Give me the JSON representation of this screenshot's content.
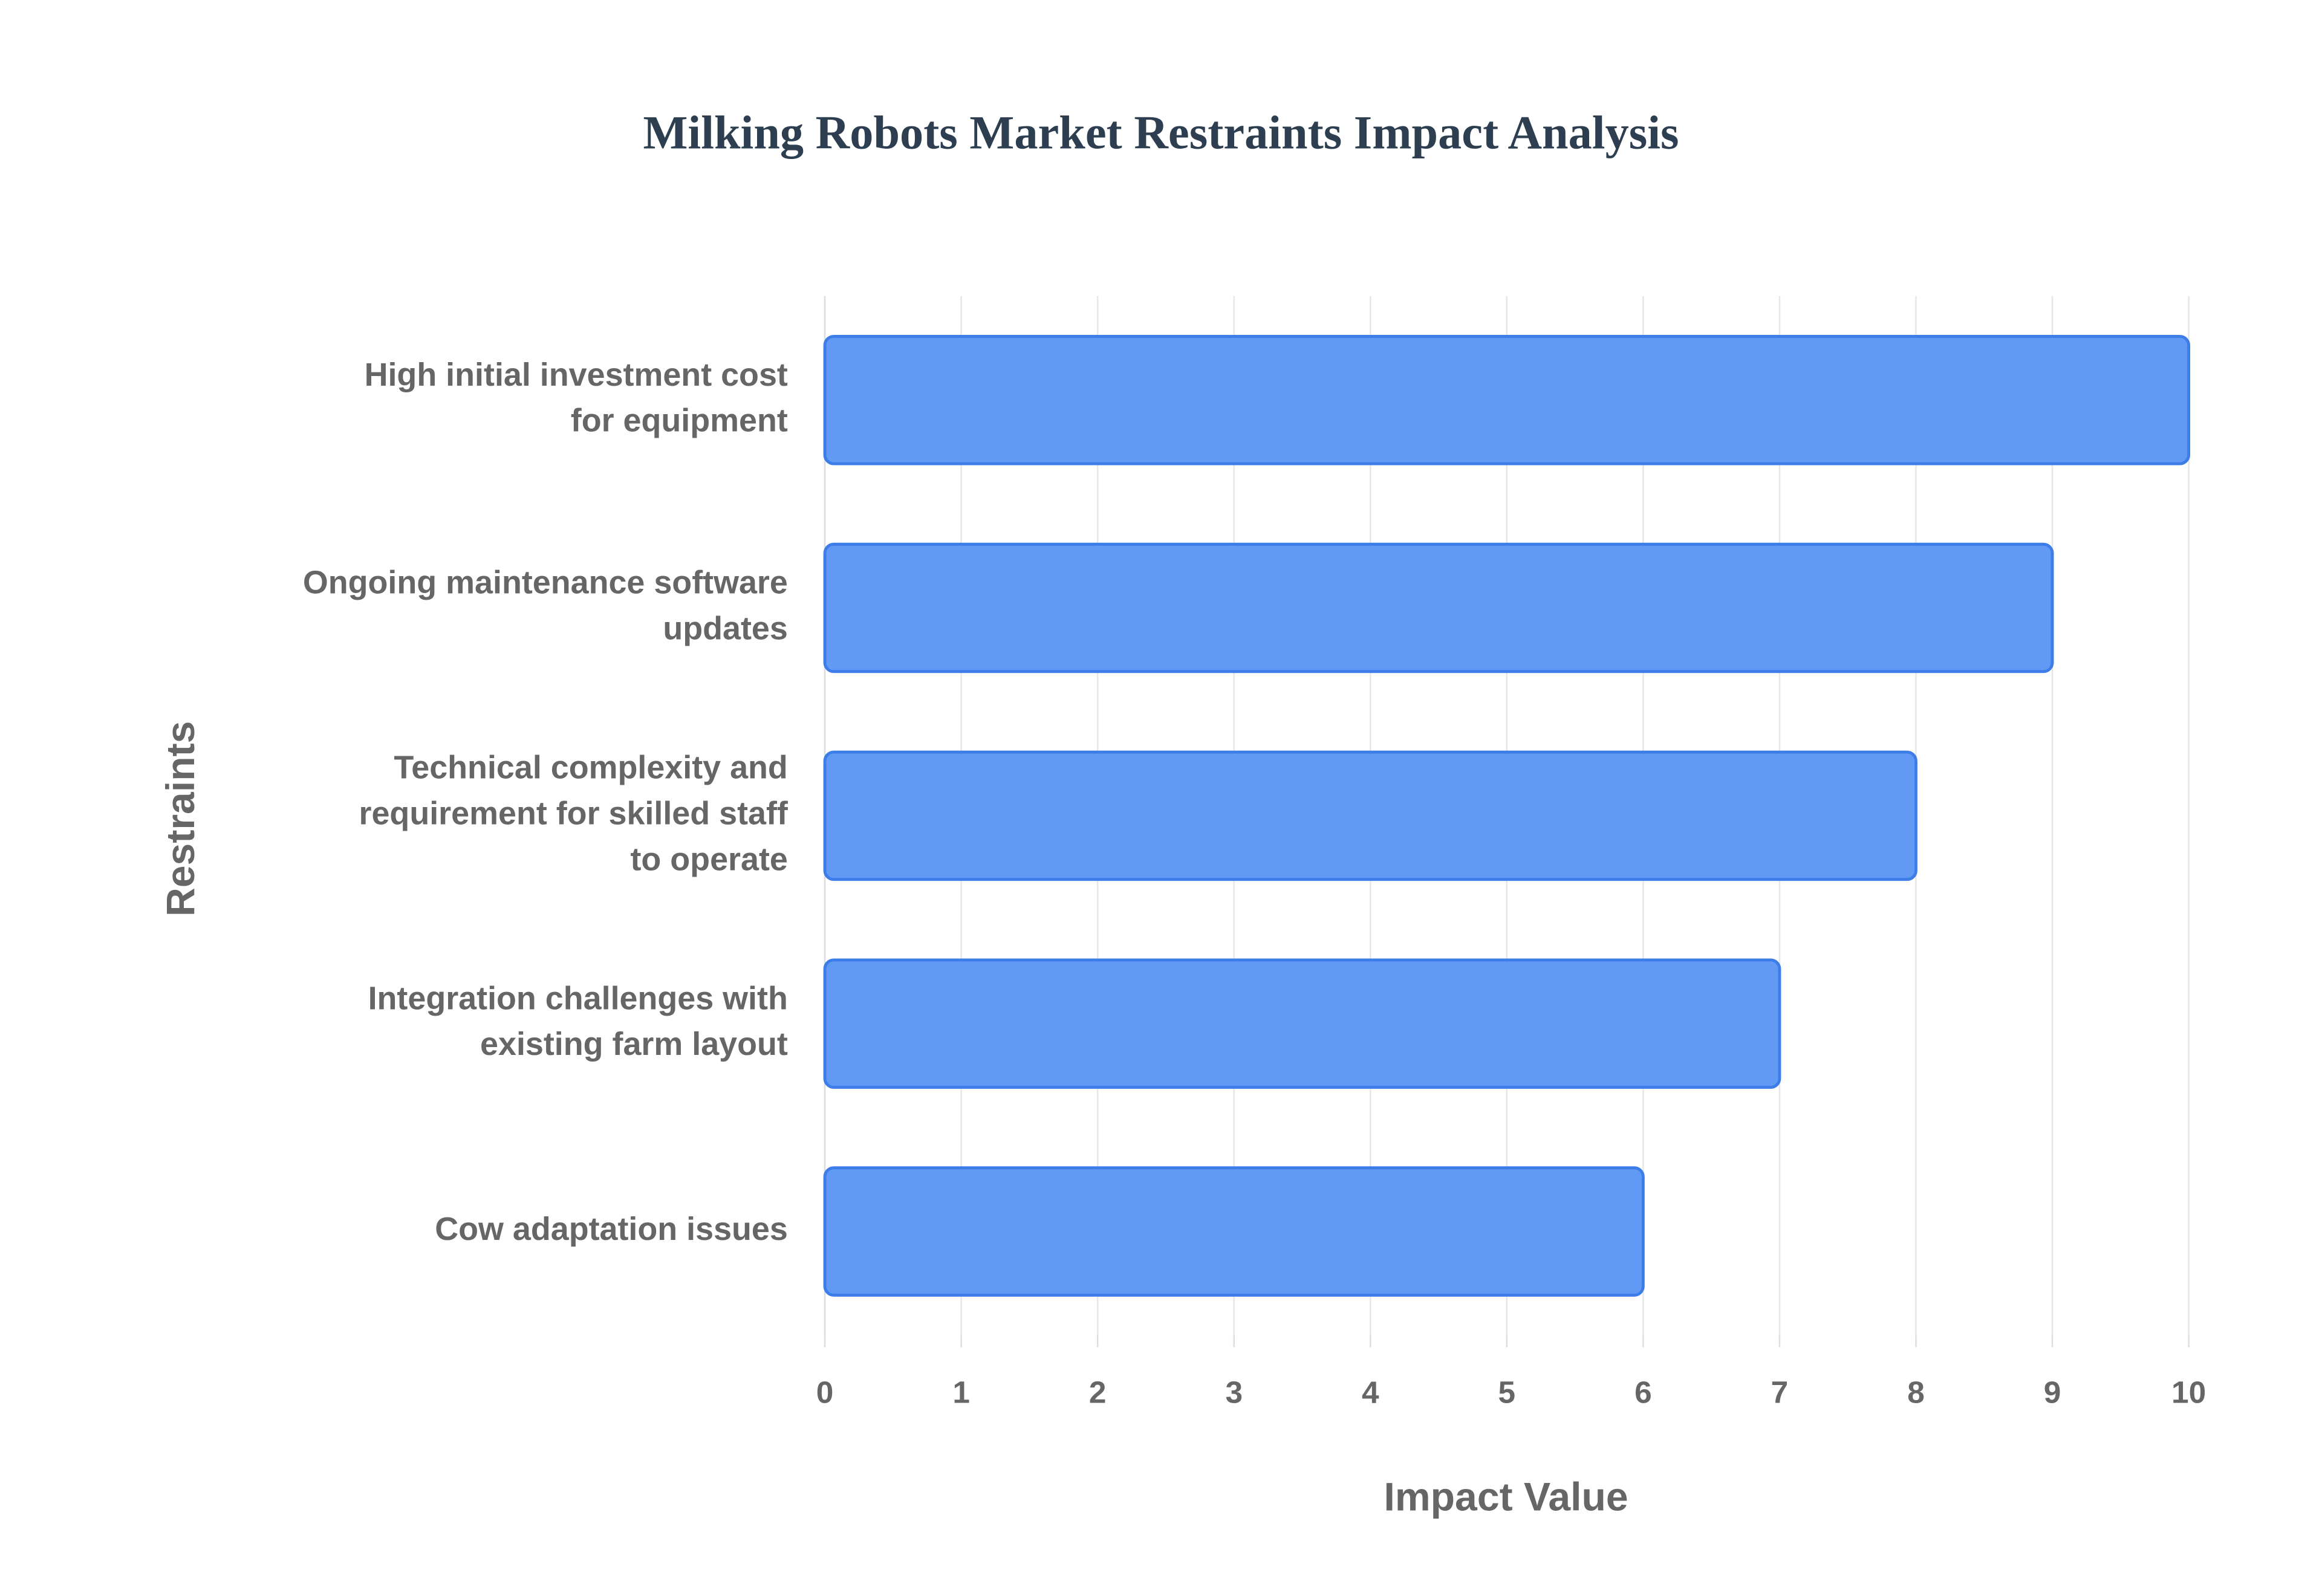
{
  "chart_data": {
    "type": "bar",
    "orientation": "horizontal",
    "title": "Milking Robots Market Restraints Impact Analysis",
    "x_label": "Impact Value",
    "y_label": "Restraints",
    "categories": [
      "High initial investment cost for equipment",
      "Ongoing maintenance software updates",
      "Technical complexity and requirement for skilled staff to operate",
      "Integration challenges with existing farm layout",
      "Cow adaptation issues"
    ],
    "values": [
      10,
      9,
      8,
      7,
      6
    ],
    "color": "#6199f5",
    "xlim": [
      0,
      10
    ],
    "xticks": [
      0,
      1,
      2,
      3,
      4,
      5,
      6,
      7,
      8,
      9,
      10
    ],
    "grid": true
  }
}
